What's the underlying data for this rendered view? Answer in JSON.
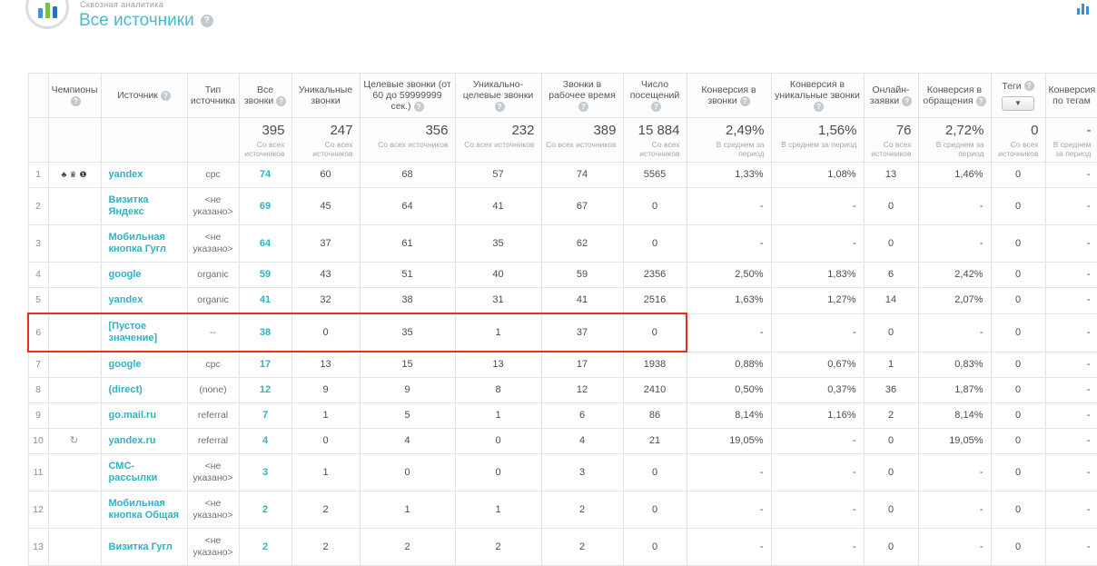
{
  "icons": {
    "help": "?",
    "dropdown_arrow": "▼"
  },
  "colors": {
    "accent_title": "#49b9cd",
    "link": "#2fb2c4",
    "highlight_red": "#ee2b1e"
  },
  "page": {
    "breadcrumb": "Сквозная аналитика",
    "title": "Все источники"
  },
  "table": {
    "columns": [
      {
        "label": ""
      },
      {
        "label": "Чемпионы",
        "help": true
      },
      {
        "label": "Источник",
        "help": true
      },
      {
        "label": "Тип источника",
        "help": false
      },
      {
        "label": "Все звонки",
        "help": true
      },
      {
        "label": "Уникальные звонки",
        "help": false
      },
      {
        "label": "Целевые звонки (от 60 до 59999999 сек.)",
        "help": true
      },
      {
        "label": "Уникально-целевые звонки",
        "help": true
      },
      {
        "label": "Звонки в рабочее время",
        "help": true
      },
      {
        "label": "Число посещений",
        "help": true
      },
      {
        "label": "Конверсия в звонки",
        "help": true
      },
      {
        "label": "Конверсия в уникальные звонки",
        "help": true
      },
      {
        "label": "Онлайн-заявки",
        "help": true
      },
      {
        "label": "Конверсия в обращения",
        "help": true
      },
      {
        "label": "Теги",
        "help": true
      },
      {
        "label": "Конверсия по тегам",
        "help": false
      }
    ],
    "totals": {
      "all_calls": {
        "value": "395",
        "caption": "Со всех источников"
      },
      "unique_calls": {
        "value": "247",
        "caption": "Со всех источников"
      },
      "target_calls": {
        "value": "356",
        "caption": "Со всех источников"
      },
      "unique_target": {
        "value": "232",
        "caption": "Со всех источников"
      },
      "worktime": {
        "value": "389",
        "caption": "Со всех источников"
      },
      "visits": {
        "value": "15 884",
        "caption": "Со всех источников"
      },
      "conv_calls": {
        "value": "2,49%",
        "caption": "В среднем за период"
      },
      "conv_unique": {
        "value": "1,56%",
        "caption": "В среднем за период"
      },
      "online": {
        "value": "76",
        "caption": "Со всех источников"
      },
      "conv_appeals": {
        "value": "2,72%",
        "caption": "В среднем за период"
      },
      "tags": {
        "value": "0",
        "caption": "Со всех источников"
      },
      "conv_tags": {
        "value": "-",
        "caption": "В среднем за период"
      }
    },
    "rows": [
      {
        "num": "1",
        "champions": [
          {
            "name": "bell-icon",
            "glyph": "♣"
          },
          {
            "name": "crown-icon",
            "glyph": "♛"
          },
          {
            "name": "medal-1-icon",
            "glyph": "❶"
          }
        ],
        "source": "yandex",
        "type": "cpc",
        "values": [
          "74",
          "60",
          "68",
          "57",
          "74",
          "5565",
          "1,33%",
          "1,08%",
          "13",
          "1,46%",
          "0",
          "-"
        ]
      },
      {
        "num": "2",
        "champions": [],
        "source": "Визитка Яндекс",
        "type": "<не указано>",
        "values": [
          "69",
          "45",
          "64",
          "41",
          "67",
          "0",
          "-",
          "-",
          "0",
          "-",
          "0",
          "-"
        ]
      },
      {
        "num": "3",
        "champions": [],
        "source": "Мобильная кнопка Гугл",
        "type": "<не указано>",
        "values": [
          "64",
          "37",
          "61",
          "35",
          "62",
          "0",
          "-",
          "-",
          "0",
          "-",
          "0",
          "-"
        ]
      },
      {
        "num": "4",
        "champions": [],
        "source": "google",
        "type": "organic",
        "values": [
          "59",
          "43",
          "51",
          "40",
          "59",
          "2356",
          "2,50%",
          "1,83%",
          "6",
          "2,42%",
          "0",
          "-"
        ]
      },
      {
        "num": "5",
        "champions": [],
        "source": "yandex",
        "type": "organic",
        "values": [
          "41",
          "32",
          "38",
          "31",
          "41",
          "2516",
          "1,63%",
          "1,27%",
          "14",
          "2,07%",
          "0",
          "-"
        ]
      },
      {
        "num": "6",
        "champions": [],
        "source": "[Пустое значение]",
        "type": "--",
        "highlight": true,
        "values": [
          "38",
          "0",
          "35",
          "1",
          "37",
          "0",
          "-",
          "-",
          "0",
          "-",
          "0",
          "-"
        ]
      },
      {
        "num": "7",
        "champions": [],
        "source": "google",
        "type": "cpc",
        "values": [
          "17",
          "13",
          "15",
          "13",
          "17",
          "1938",
          "0,88%",
          "0,67%",
          "1",
          "0,83%",
          "0",
          "-"
        ]
      },
      {
        "num": "8",
        "champions": [],
        "source": "(direct)",
        "type": "(none)",
        "values": [
          "12",
          "9",
          "9",
          "8",
          "12",
          "2410",
          "0,50%",
          "0,37%",
          "36",
          "1,87%",
          "0",
          "-"
        ]
      },
      {
        "num": "9",
        "champions": [],
        "source": "go.mail.ru",
        "type": "referral",
        "values": [
          "7",
          "1",
          "5",
          "1",
          "6",
          "86",
          "8,14%",
          "1,16%",
          "2",
          "8,14%",
          "0",
          "-"
        ]
      },
      {
        "num": "10",
        "champions": [
          {
            "name": "refresh-icon",
            "glyph": "↻",
            "clickable": true,
            "refresh": true
          }
        ],
        "source": "yandex.ru",
        "type": "referral",
        "values": [
          "4",
          "0",
          "4",
          "0",
          "4",
          "21",
          "19,05%",
          "-",
          "0",
          "19,05%",
          "0",
          "-"
        ]
      },
      {
        "num": "11",
        "champions": [],
        "source": "СМС-рассылки",
        "type": "<не указано>",
        "values": [
          "3",
          "1",
          "0",
          "0",
          "3",
          "0",
          "-",
          "-",
          "0",
          "-",
          "0",
          "-"
        ]
      },
      {
        "num": "12",
        "champions": [],
        "source": "Мобильная кнопка Общая",
        "type": "<не указано>",
        "values": [
          "2",
          "2",
          "1",
          "1",
          "2",
          "0",
          "-",
          "-",
          "0",
          "-",
          "0",
          "-"
        ]
      },
      {
        "num": "13",
        "champions": [],
        "source": "Визитка Гугл",
        "type": "<не указано>",
        "values": [
          "2",
          "2",
          "2",
          "2",
          "2",
          "0",
          "-",
          "-",
          "0",
          "-",
          "0",
          "-"
        ]
      }
    ]
  }
}
